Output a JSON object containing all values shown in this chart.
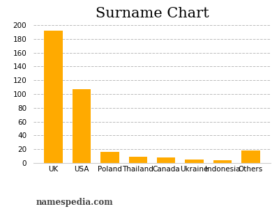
{
  "categories": [
    "UK",
    "USA",
    "Poland",
    "Thailand",
    "Canada",
    "Ukraine",
    "Indonesia",
    "Others"
  ],
  "values": [
    192,
    107,
    16,
    9,
    8,
    5,
    4,
    18
  ],
  "bar_color": "#FFAA00",
  "title": "Surname Chart",
  "title_fontsize": 15,
  "ylim": [
    0,
    200
  ],
  "yticks": [
    0,
    20,
    40,
    60,
    80,
    100,
    120,
    140,
    160,
    180,
    200
  ],
  "grid_color": "#bbbbbb",
  "background_color": "#ffffff",
  "watermark": "namespedia.com",
  "xtick_fontsize": 7.5,
  "ytick_fontsize": 7.5,
  "bar_width": 0.65
}
